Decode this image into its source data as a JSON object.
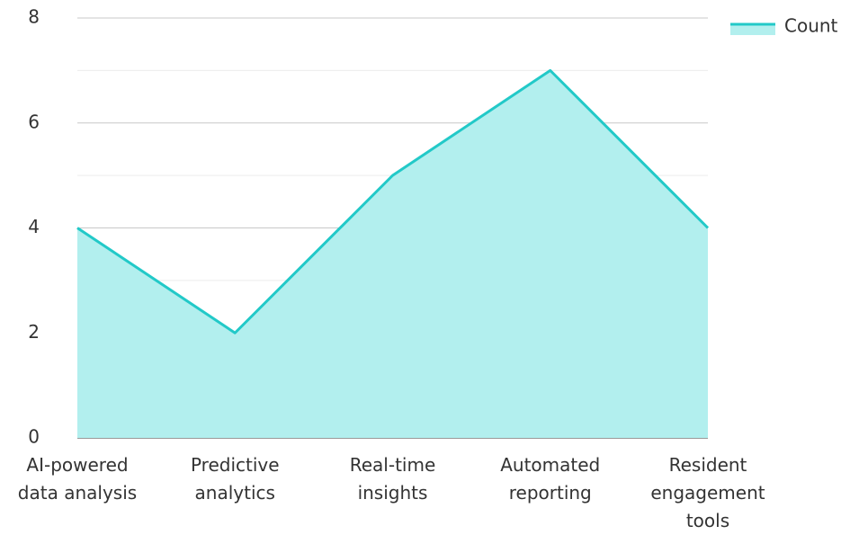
{
  "chart_data": {
    "type": "area",
    "categories": [
      "AI-powered data analysis",
      "Predictive analytics",
      "Real-time insights",
      "Automated reporting",
      "Resident engagement tools"
    ],
    "series": [
      {
        "name": "Count",
        "color": "#22c9c8",
        "fill": "#b2efee",
        "values": [
          4,
          2,
          5,
          7,
          4
        ]
      }
    ],
    "ylim": [
      0,
      8
    ],
    "yticks": [
      0,
      2,
      4,
      6,
      8
    ],
    "yminorticks": [
      1,
      3,
      5,
      7
    ],
    "grid": true,
    "legend": "top-right"
  }
}
